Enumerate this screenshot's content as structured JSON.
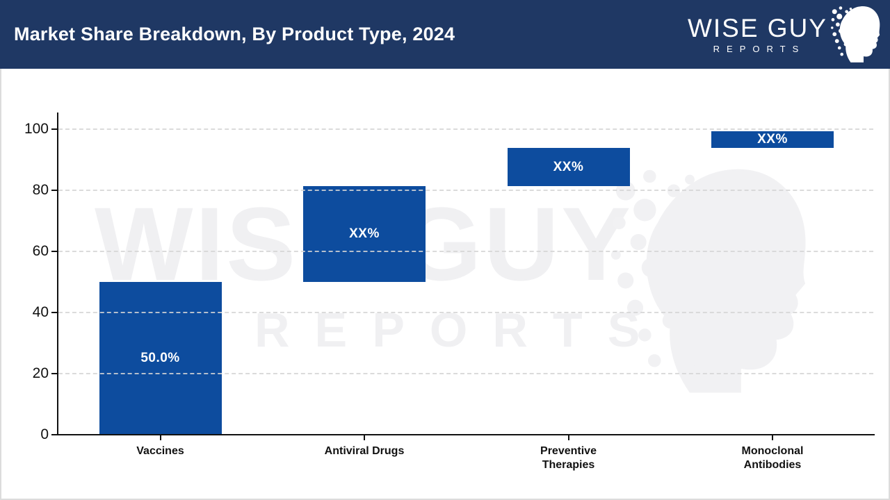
{
  "header": {
    "logo": {
      "line1": "WISE GUY",
      "line2": "REPORTS"
    }
  },
  "watermark": {
    "line1": "WISE GUY",
    "line2": "REPORTS"
  },
  "icons": {
    "logo_head": "head-profile-dots-icon",
    "watermark_head": "head-profile-dots-icon"
  },
  "colors": {
    "header_bg": "#1f3864",
    "bar": "#0d4c9e",
    "grid": "#d5d5d5",
    "axis": "#111111",
    "title_text": "#ffffff",
    "bar_label_text": "#ffffff",
    "watermark": "#f0f0f2"
  },
  "chart_data": {
    "type": "bar",
    "subtype": "waterfall",
    "title": "Market Share Breakdown, By Product Type, 2024",
    "categories": [
      "Vaccines",
      "Antiviral Drugs",
      "Preventive\nTherapies",
      "Monoclonal\nAntibodies"
    ],
    "segments": [
      {
        "category": "Vaccines",
        "start": 0,
        "end": 50.0,
        "label": "50.0%"
      },
      {
        "category": "Antiviral Drugs",
        "start": 50.0,
        "end": 81.2,
        "label": "XX%"
      },
      {
        "category": "Preventive Therapies",
        "start": 81.2,
        "end": 93.8,
        "label": "XX%"
      },
      {
        "category": "Monoclonal Antibodies",
        "start": 93.8,
        "end": 99.3,
        "label": "XX%"
      }
    ],
    "xlabel": "",
    "ylabel": "",
    "ylim": [
      0,
      100
    ],
    "yticks": [
      0,
      20,
      40,
      60,
      80,
      100
    ],
    "grid": "horizontal-dashed",
    "legend": "none"
  }
}
